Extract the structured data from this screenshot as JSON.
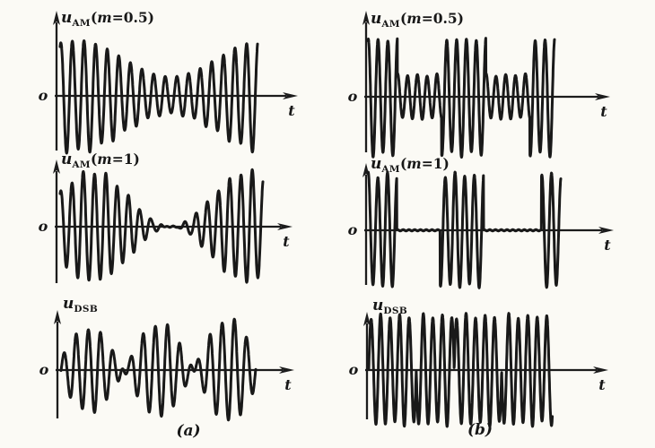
{
  "figure": {
    "ink_color": "#191919",
    "paper_color": "#fbfaf5",
    "captions": {
      "a": "(a)",
      "b": "(b)"
    }
  },
  "chart_data": {
    "type": "line",
    "xlabel": "t",
    "origin": "o",
    "columns": [
      {
        "id": "a",
        "caption": "(a)",
        "modulating_signal": "sinusoidal"
      },
      {
        "id": "b",
        "caption": "(b)",
        "modulating_signal": "square-wave"
      }
    ],
    "plots": [
      {
        "id": "a1",
        "label": "u_AM(m=0.5)",
        "label_var": "u",
        "label_sub": "AM",
        "label_arg_open": "(",
        "label_arg_var": "m",
        "label_arg_rest": "=0.5)",
        "origin_label": "o",
        "t_label": "t",
        "signal": {
          "kind": "AM",
          "modulating": "sine",
          "modulation_index": 0.5,
          "carrier_cycles": 17,
          "carrier_phase": 1.2,
          "mod_cycles": 1.05,
          "mod_phase": 0.55
        }
      },
      {
        "id": "a2",
        "label": "u_AM(m=1)",
        "label_var": "u",
        "label_sub": "AM",
        "label_arg_open": "(",
        "label_arg_var": "m",
        "label_arg_rest": "=1)",
        "origin_label": "o",
        "t_label": "t",
        "signal": {
          "kind": "AM",
          "modulating": "sine",
          "modulation_index": 1,
          "carrier_cycles": 18,
          "carrier_phase": 1.2,
          "mod_cycles": 1.3,
          "mod_phase": 1.3
        }
      },
      {
        "id": "a3",
        "label": "u_DSB",
        "label_var": "u",
        "label_sub": "DSB",
        "label_arg_open": "",
        "label_arg_var": "",
        "label_arg_rest": "",
        "origin_label": "o",
        "t_label": "t",
        "signal": {
          "kind": "DSB",
          "modulating": "sine",
          "carrier_cycles": 16,
          "carrier_phase": 0,
          "mod_cycles": 1.4,
          "mod_phase": 0.31,
          "gain0": 0.8,
          "gain_slope": 0.25
        }
      },
      {
        "id": "b1",
        "label": "u_AM(m=0.5)",
        "label_var": "u",
        "label_sub": "AM",
        "label_arg_open": "(",
        "label_arg_var": "m",
        "label_arg_rest": "=0.5)",
        "origin_label": "o",
        "t_label": "t",
        "signal": {
          "kind": "AM",
          "modulating": "square",
          "modulation_index": 0.5,
          "carrier_cycles": 19,
          "carrier_phase": 1.35,
          "segments": [
            {
              "start": 0,
              "end": 0.158,
              "amplitude": 1
            },
            {
              "start": 0.158,
              "end": 0.395,
              "amplitude": 0.38
            },
            {
              "start": 0.395,
              "end": 0.632,
              "amplitude": 1
            },
            {
              "start": 0.632,
              "end": 0.868,
              "amplitude": 0.38
            },
            {
              "start": 0.868,
              "end": 1,
              "amplitude": 1
            }
          ]
        }
      },
      {
        "id": "b2",
        "label": "u_AM(m=1)",
        "label_var": "u",
        "label_sub": "AM",
        "label_arg_open": "(",
        "label_arg_var": "m",
        "label_arg_rest": "=1)",
        "origin_label": "o",
        "t_label": "t",
        "signal": {
          "kind": "AM",
          "modulating": "square",
          "modulation_index": 1,
          "carrier_cycles": 20,
          "carrier_phase": 1.35,
          "segments": [
            {
              "start": 0,
              "end": 0.15,
              "amplitude": 1
            },
            {
              "start": 0.15,
              "end": 0.375,
              "amplitude": 0
            },
            {
              "start": 0.375,
              "end": 0.6,
              "amplitude": 1
            },
            {
              "start": 0.6,
              "end": 0.9,
              "amplitude": 0
            },
            {
              "start": 0.9,
              "end": 1,
              "amplitude": 1
            }
          ]
        }
      },
      {
        "id": "b3",
        "label": "u_DSB",
        "label_var": "u",
        "label_sub": "DSB",
        "label_arg_open": "",
        "label_arg_var": "",
        "label_arg_rest": "",
        "origin_label": "o",
        "t_label": "t",
        "signal": {
          "kind": "DSB",
          "modulating": "square",
          "carrier_cycles": 19,
          "carrier_phase": 0,
          "phase_flips": [
            0.263,
            0.474,
            0.737
          ],
          "t_end": 1.018
        }
      }
    ]
  }
}
